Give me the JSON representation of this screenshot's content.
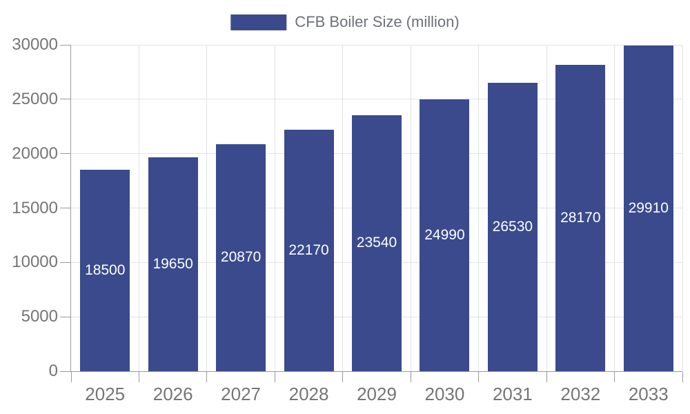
{
  "legend": {
    "label": "CFB Boiler Size (million)"
  },
  "chart_data": {
    "type": "bar",
    "title": "CFB Boiler Size (million)",
    "categories": [
      "2025",
      "2026",
      "2027",
      "2028",
      "2029",
      "2030",
      "2031",
      "2032",
      "2033"
    ],
    "series": [
      {
        "name": "CFB Boiler Size (million)",
        "values": [
          18500,
          19650,
          20870,
          22170,
          23540,
          24990,
          26530,
          28170,
          29910
        ]
      }
    ],
    "xlabel": "",
    "ylabel": "",
    "ylim": [
      0,
      30000
    ],
    "yticks": [
      0,
      5000,
      10000,
      15000,
      20000,
      25000,
      30000
    ],
    "grid": true,
    "bar_labels_visible": true,
    "legend_position": "top-center",
    "colors": {
      "bar": "#3A4A8C",
      "bar_label": "#FFFFFF",
      "axis_line": "#999999",
      "grid_line": "#E2E2E9",
      "tick_label": "#757575",
      "legend_text": "#6E7079",
      "background": "#FFFFFF"
    }
  }
}
